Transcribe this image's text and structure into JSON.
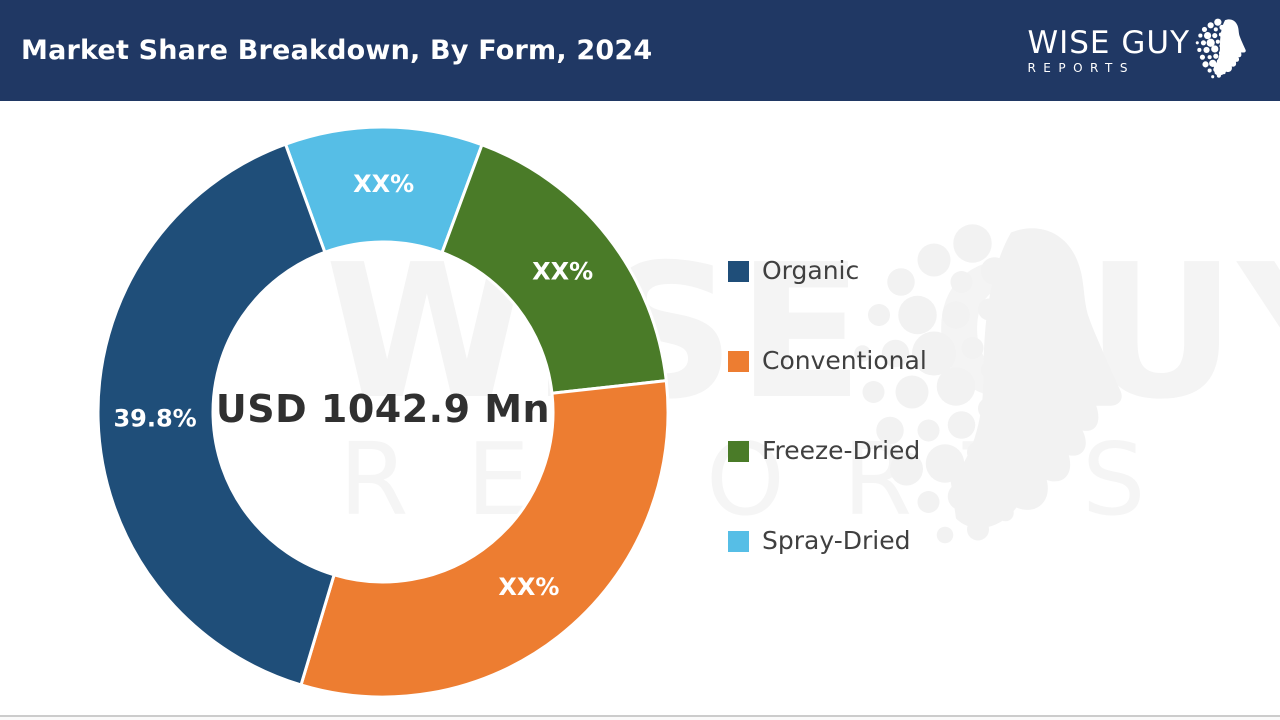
{
  "header": {
    "title": "Market Share Breakdown, By Form, 2024",
    "bg_color": "#203864",
    "logo": {
      "line1": "WISE GUY",
      "line2": "REPORTS"
    }
  },
  "watermark": {
    "line1": "WISE GUY",
    "line2": "REPORTS"
  },
  "chart_data": {
    "type": "pie",
    "subtype": "donut",
    "title": "Market Share Breakdown, By Form, 2024",
    "center_label": "USD 1042.9 Mn",
    "start_angle_deg": -20,
    "direction": "clockwise",
    "legend_position": "right",
    "segments": [
      {
        "label": "Spray-Dried",
        "value_pct": 11.2,
        "display_label": "XX%",
        "color": "#56BEE6"
      },
      {
        "label": "Freeze-Dried",
        "value_pct": 17.6,
        "display_label": "XX%",
        "color": "#4A7B28"
      },
      {
        "label": "Conventional",
        "value_pct": 31.4,
        "display_label": "XX%",
        "color": "#ED7D31"
      },
      {
        "label": "Organic",
        "value_pct": 39.8,
        "display_label": "39.8%",
        "color": "#1F4E79"
      }
    ],
    "legend": [
      {
        "label": "Organic",
        "color": "#1F4E79"
      },
      {
        "label": "Conventional",
        "color": "#ED7D31"
      },
      {
        "label": "Freeze-Dried",
        "color": "#4A7B28"
      },
      {
        "label": "Spray-Dried",
        "color": "#56BEE6"
      }
    ]
  }
}
